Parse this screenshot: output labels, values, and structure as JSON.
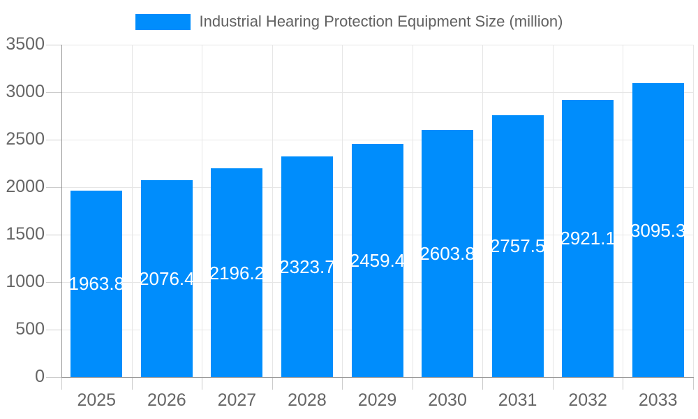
{
  "legend": {
    "title": "Industrial Hearing Protection Equipment Size (million)"
  },
  "colors": {
    "bar": "#008dfc",
    "grid": "#e6e6e6",
    "axis": "#999999",
    "tick": "#cccccc",
    "tick_label": "#666666",
    "title_text": "#616161",
    "value_label": "#ffffff",
    "background": "#ffffff"
  },
  "chart_data": {
    "type": "bar",
    "title": "Industrial Hearing Protection Equipment Size (million)",
    "categories": [
      "2025",
      "2026",
      "2027",
      "2028",
      "2029",
      "2030",
      "2031",
      "2032",
      "2033"
    ],
    "values": [
      1963.8,
      2076.4,
      2196.2,
      2323.7,
      2459.4,
      2603.8,
      2757.5,
      2921.1,
      3095.3
    ],
    "xlabel": "",
    "ylabel": "",
    "ylim": [
      0,
      3500
    ],
    "yticks": [
      0,
      500,
      1000,
      1500,
      2000,
      2500,
      3000,
      3500
    ],
    "grid": true,
    "legend_position": "top",
    "value_labels": "inside-center"
  }
}
